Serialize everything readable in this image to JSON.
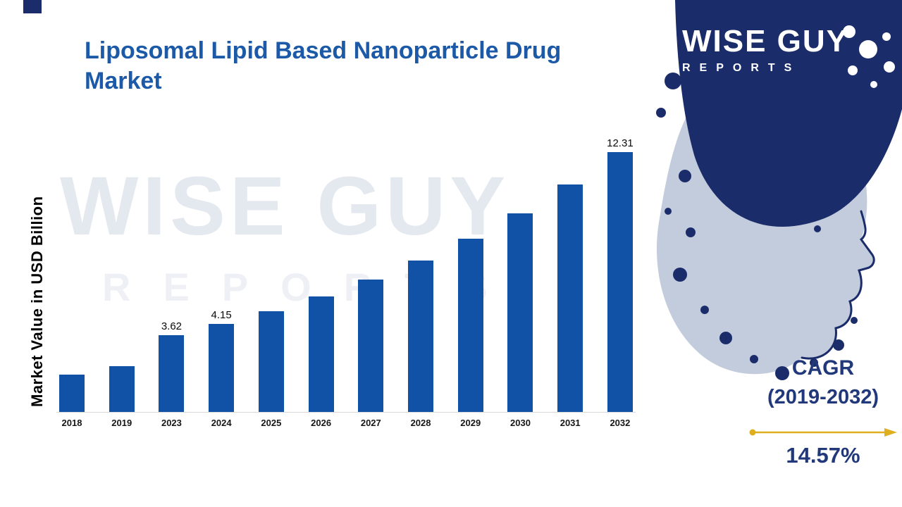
{
  "page": {
    "title": "Liposomal Lipid Based Nanoparticle Drug Market"
  },
  "brand": {
    "name": "WISE GUY",
    "subname": "REPORTS"
  },
  "watermark": {
    "line1": "WISE GUY",
    "line2": "REPORTS"
  },
  "cagr": {
    "label": "CAGR",
    "range": "(2019-2032)",
    "value": "14.57%"
  },
  "colors": {
    "navy": "#1b2c6a",
    "bar_blue": "#1151a6",
    "title_blue": "#1c5aa8",
    "gold": "#dfae1d",
    "face_silhouette": "#c3ccdd",
    "watermark_gray": "#e4e8ef"
  },
  "chart_data": {
    "type": "bar",
    "title": "Liposomal Lipid Based Nanoparticle Drug Market",
    "ylabel": "Market Value in USD Billion",
    "categories": [
      "2018",
      "2019",
      "2023",
      "2024",
      "2025",
      "2026",
      "2027",
      "2028",
      "2029",
      "2030",
      "2031",
      "2032"
    ],
    "values": [
      1.75,
      2.15,
      3.62,
      4.15,
      4.75,
      5.45,
      6.25,
      7.15,
      8.2,
      9.4,
      10.75,
      12.31
    ],
    "labels": [
      "",
      "",
      "3.62",
      "4.15",
      "",
      "",
      "",
      "",
      "",
      "",
      "",
      "12.31"
    ],
    "bar_color": "#1151a6",
    "ylim": [
      0,
      13
    ],
    "grid": false,
    "legend": false
  }
}
